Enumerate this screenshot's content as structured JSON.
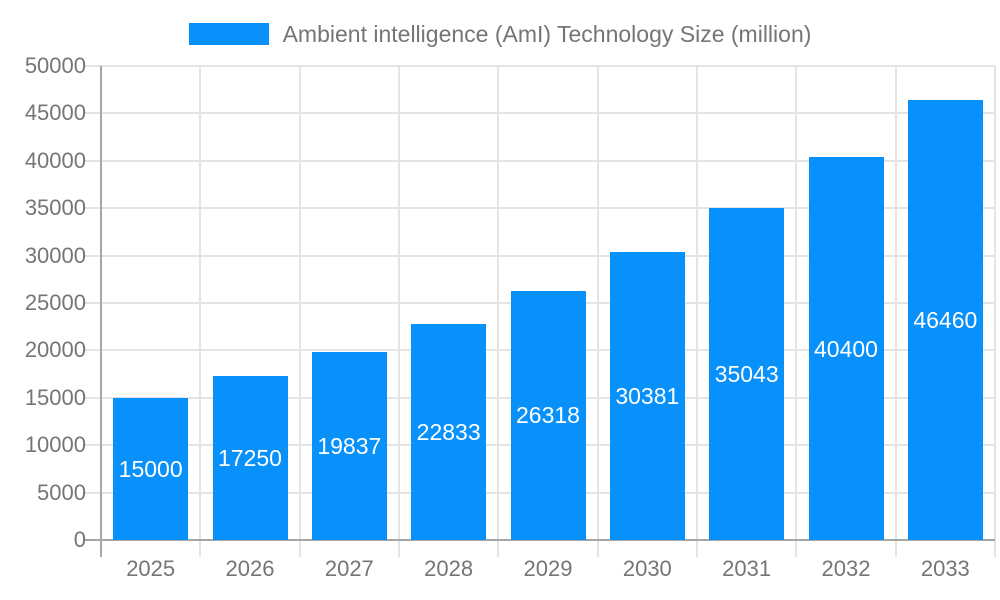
{
  "legend": {
    "label": "Ambient intelligence (AmI) Technology Size (million)"
  },
  "chart_data": {
    "type": "bar",
    "title": "Ambient intelligence (AmI) Technology Size (million)",
    "categories": [
      "2025",
      "2026",
      "2027",
      "2028",
      "2029",
      "2030",
      "2031",
      "2032",
      "2033"
    ],
    "values": [
      15000,
      17250,
      19837,
      22833,
      26318,
      30381,
      35043,
      40400,
      46460
    ],
    "xlabel": "",
    "ylabel": "",
    "ylim": [
      0,
      50000
    ],
    "ytick_step": 5000,
    "ytick_labels": [
      "0",
      "5000",
      "10000",
      "15000",
      "20000",
      "25000",
      "30000",
      "35000",
      "40000",
      "45000",
      "50000"
    ],
    "grid": true,
    "legend_position": "top",
    "value_labels": "inside-center"
  },
  "colors": {
    "bar": "#0890fb",
    "grid": "#e4e4e4",
    "axis": "#a6a6a6",
    "tick_text": "#757575",
    "value_text": "#ffffff",
    "background": "#ffffff"
  }
}
